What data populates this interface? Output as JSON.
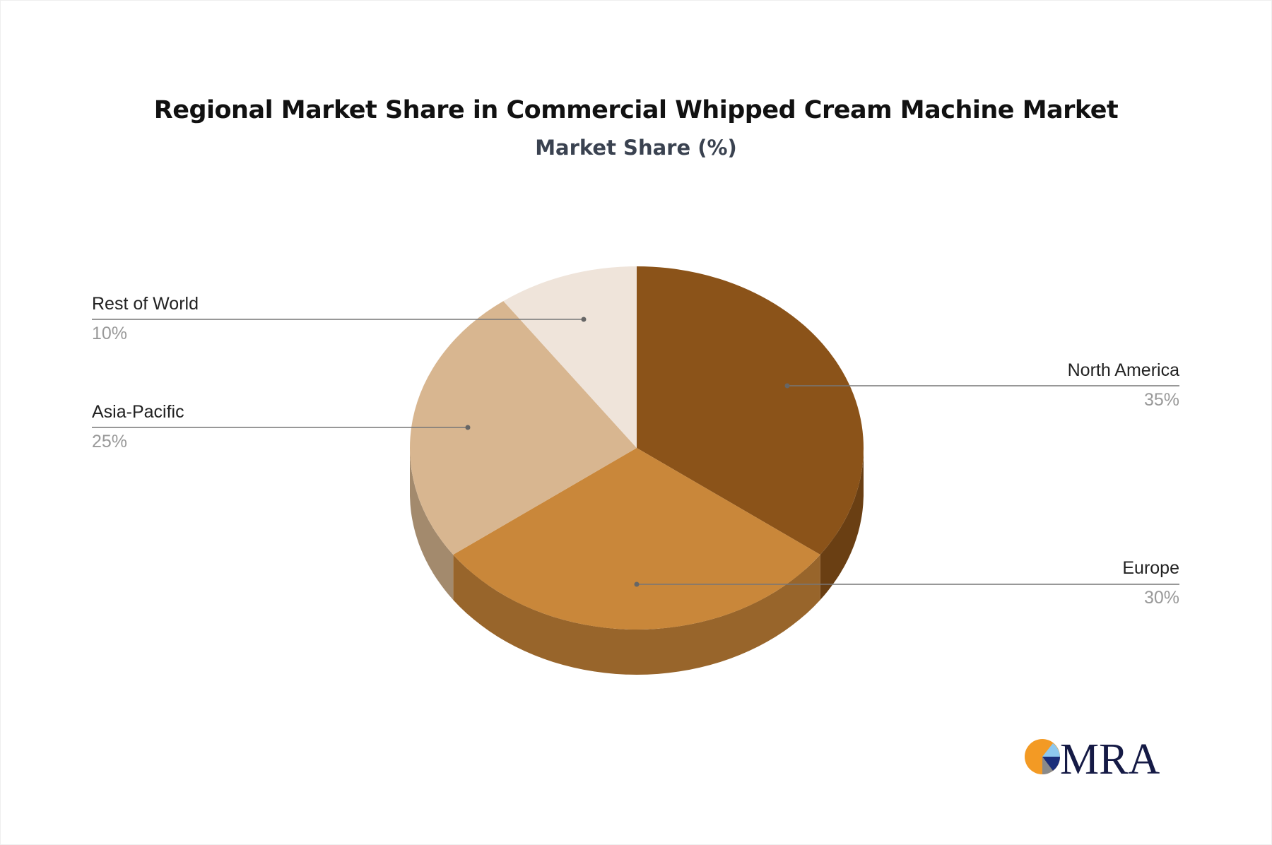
{
  "chart_data": {
    "type": "pie",
    "style": "3d",
    "title": "Regional Market Share in Commercial Whipped Cream Machine Market",
    "subtitle": "Market Share (%)",
    "slices": [
      {
        "label": "North America",
        "value": 35,
        "value_label": "35%",
        "color": "#8B5319",
        "side_color": "#6A3F13"
      },
      {
        "label": "Europe",
        "value": 30,
        "value_label": "30%",
        "color": "#C9873A",
        "side_color": "#98652B"
      },
      {
        "label": "Asia-Pacific",
        "value": 25,
        "value_label": "25%",
        "color": "#D8B690",
        "side_color": "#A38A6D"
      },
      {
        "label": "Rest of World",
        "value": 10,
        "value_label": "10%",
        "color": "#EFE4DA",
        "side_color": "#B8ADA3"
      }
    ]
  },
  "logo": {
    "text": "MRA",
    "colors": [
      "#F39A24",
      "#8FC8EE",
      "#1B2E7A",
      "#8A8A8A"
    ]
  }
}
